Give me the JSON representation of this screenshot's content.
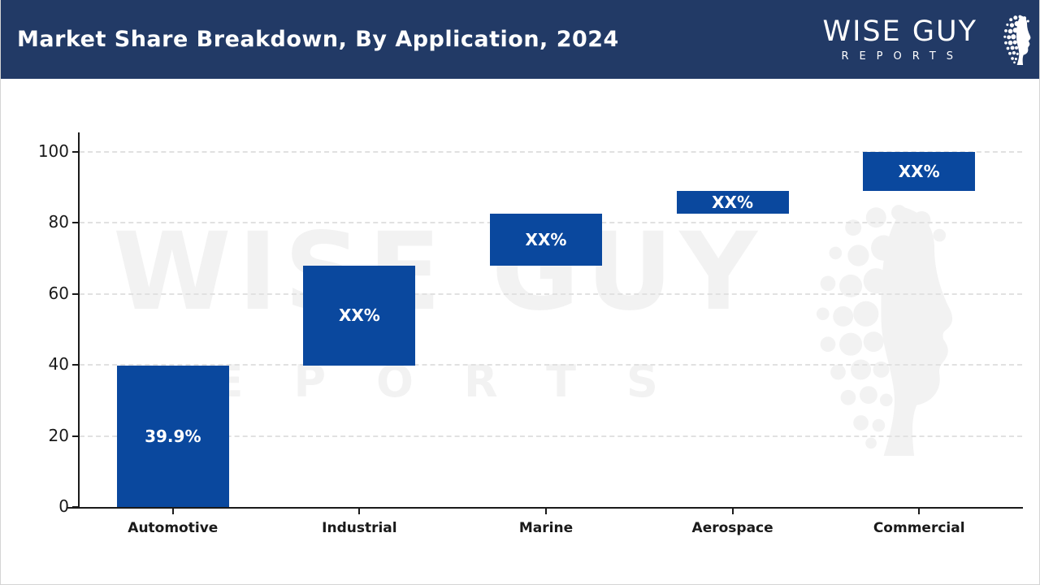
{
  "header": {
    "title": "Market Share Breakdown, By Application, 2024",
    "logo": {
      "line1": "WISE GUY",
      "line2": "REPORTS"
    }
  },
  "watermark": {
    "line1": "WISE GUY",
    "line2": "REPORTS"
  },
  "colors": {
    "header_bg": "#223a66",
    "bar": "#0a489e",
    "bar_label": "#ffffff",
    "grid": "#e1e1e1",
    "axis": "#1a1a1a",
    "watermark": "#f2f2f2",
    "page_border": "#d4d4d4"
  },
  "chart_data": {
    "type": "bar",
    "subtype": "waterfall",
    "categories": [
      "Automotive",
      "Industrial",
      "Marine",
      "Aerospace",
      "Commercial"
    ],
    "segments": [
      {
        "category": "Automotive",
        "start": 0,
        "end": 39.9,
        "value": 39.9,
        "label": "39.9%"
      },
      {
        "category": "Industrial",
        "start": 39.9,
        "end": 68,
        "value": 28.1,
        "label": "XX%"
      },
      {
        "category": "Marine",
        "start": 68,
        "end": 82.5,
        "value": 14.5,
        "label": "XX%"
      },
      {
        "category": "Aerospace",
        "start": 82.5,
        "end": 89,
        "value": 6.5,
        "label": "XX%"
      },
      {
        "category": "Commercial",
        "start": 89,
        "end": 100,
        "value": 11,
        "label": "XX%"
      }
    ],
    "yticks": [
      0,
      20,
      40,
      60,
      80,
      100
    ],
    "ylim": [
      0,
      100
    ],
    "xlabel": "",
    "ylabel": "",
    "grid": "horizontal-dashed",
    "legend": "none"
  }
}
